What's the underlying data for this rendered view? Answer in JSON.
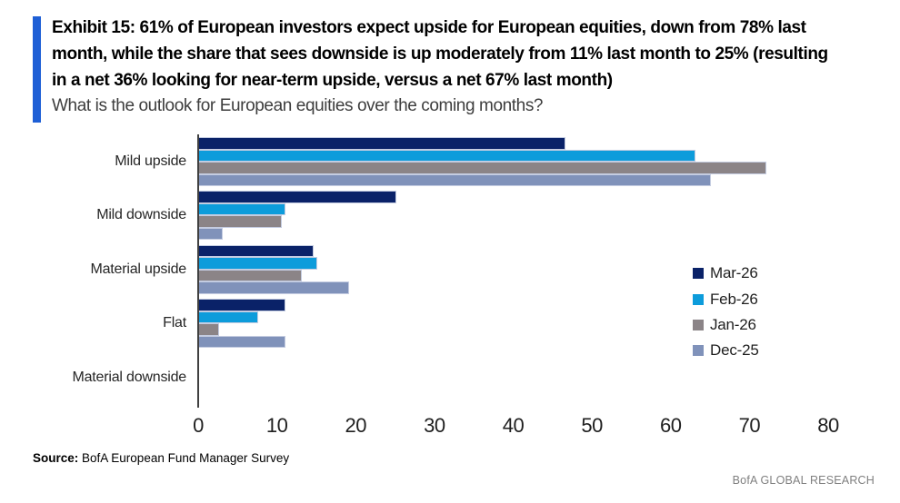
{
  "exhibit": {
    "accent_color": "#1e5fd6",
    "title_lines": [
      "Exhibit 15: 61% of European investors expect upside for European equities, down from 78% last",
      "month, while the share that sees downside is up moderately from 11% last month to 25% (resulting",
      "in a net 36% looking for near-term upside, versus a net 67% last month)"
    ],
    "subtitle": "What is the outlook for European equities over the coming months?"
  },
  "chart_data": {
    "type": "bar",
    "orientation": "horizontal",
    "title": "What is the outlook for European equities over the coming months?",
    "categories": [
      "Mild upside",
      "Mild downside",
      "Material upside",
      "Flat",
      "Material downside"
    ],
    "series": [
      {
        "name": "Mar-26",
        "color": "#0a2268",
        "values": [
          46.5,
          25,
          14.5,
          11,
          0
        ]
      },
      {
        "name": "Feb-26",
        "color": "#0d9cdb",
        "values": [
          63,
          11,
          15,
          7.5,
          0
        ]
      },
      {
        "name": "Jan-26",
        "color": "#8b8487",
        "values": [
          72,
          10.5,
          13,
          2.5,
          0
        ]
      },
      {
        "name": "Dec-25",
        "color": "#8092ba",
        "values": [
          65,
          3,
          19,
          11,
          0
        ]
      }
    ],
    "xlim": [
      0,
      80
    ],
    "xticks": [
      0,
      10,
      20,
      30,
      40,
      50,
      60,
      70,
      80
    ],
    "xlabel": "",
    "ylabel": "",
    "grid": false,
    "legend_position": "right"
  },
  "footer": {
    "source_label": "Source:",
    "source_text": " BofA European Fund Manager Survey",
    "brand": "BofA GLOBAL RESEARCH"
  }
}
